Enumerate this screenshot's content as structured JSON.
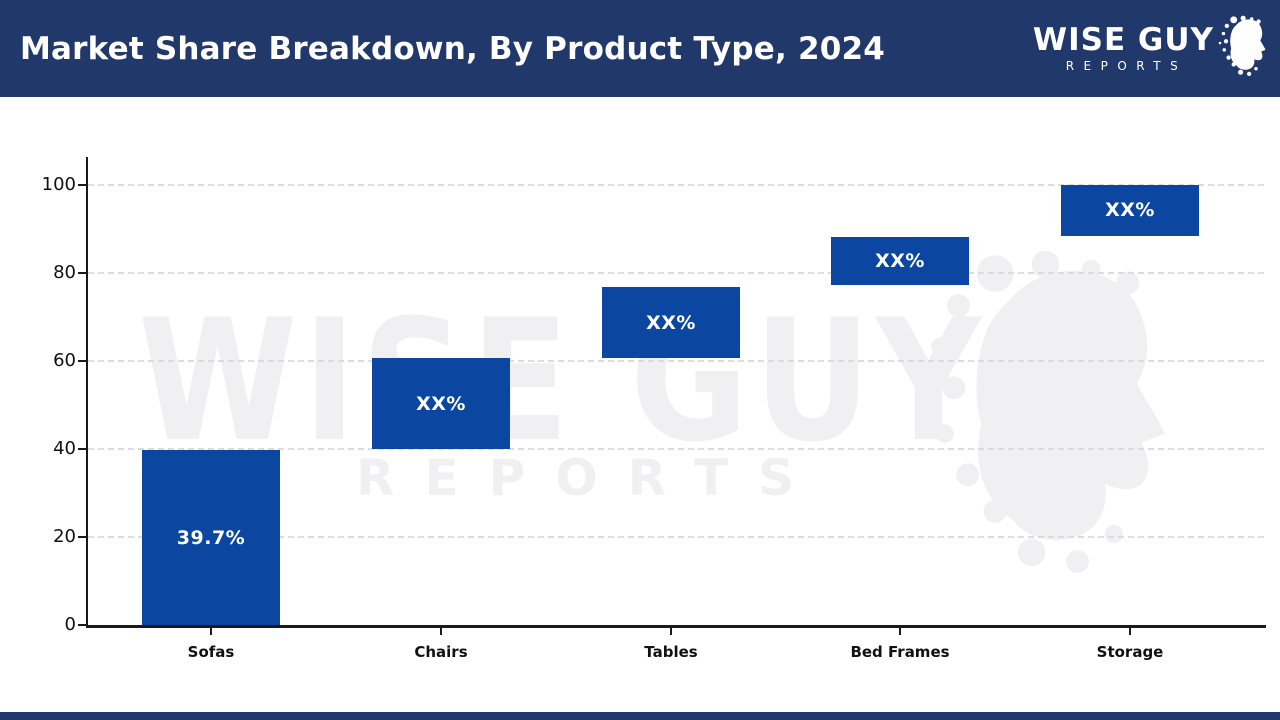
{
  "header": {
    "title": "Market Share Breakdown, By Product Type, 2024",
    "logo_line1": "WISE GUY",
    "logo_line2": "REPORTS"
  },
  "watermark": {
    "line1": "WISE GUY",
    "line2": "REPORTS"
  },
  "colors": {
    "header_bg": "#20386a",
    "footer_bg": "#20386a",
    "bar": "#0b47a1",
    "grid": "#dcdcdc",
    "axis": "#1a1a1a",
    "watermark": "#f0f0f2"
  },
  "chart_data": {
    "type": "bar",
    "subtype": "waterfall",
    "title": "Market Share Breakdown, By Product Type, 2024",
    "xlabel": "",
    "ylabel": "",
    "categories": [
      "Sofas",
      "Chairs",
      "Tables",
      "Bed Frames",
      "Storage"
    ],
    "segments": [
      {
        "category": "Sofas",
        "start": 0,
        "end": 39.7,
        "label": "39.7%"
      },
      {
        "category": "Chairs",
        "start": 39.9,
        "end": 60.6,
        "label": "XX%"
      },
      {
        "category": "Tables",
        "start": 60.6,
        "end": 76.8,
        "label": "XX%"
      },
      {
        "category": "Bed Frames",
        "start": 77.2,
        "end": 88.2,
        "label": "XX%"
      },
      {
        "category": "Storage",
        "start": 88.5,
        "end": 100,
        "label": "XX%"
      }
    ],
    "y_ticks": [
      0,
      20,
      40,
      60,
      80,
      100
    ],
    "ylim": [
      0,
      105
    ],
    "grid": "horizontal-dashed",
    "bar_color": "#0b47a1",
    "legend": "none"
  }
}
